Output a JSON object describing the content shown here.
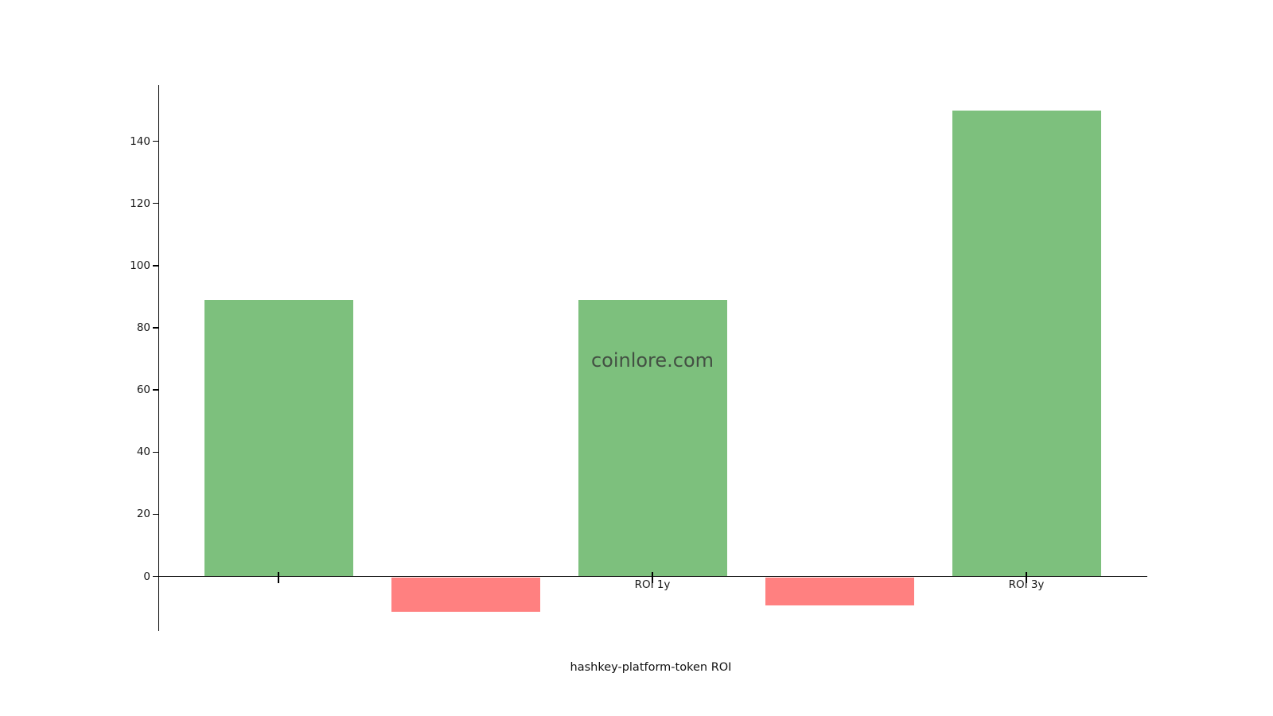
{
  "chart_data": {
    "type": "bar",
    "title": "hashkey-platform-token ROI",
    "watermark": "coinlore.com",
    "categories": [
      "",
      "",
      "ROI 1y",
      "",
      "ROI 3y"
    ],
    "values": [
      89,
      -11,
      89,
      -9,
      150
    ],
    "bar_colors": [
      "#7dc07d",
      "#ff8080",
      "#7dc07d",
      "#ff8080",
      "#7dc07d"
    ],
    "positive_color": "#7dc07d",
    "negative_color": "#ff8080",
    "yticks": [
      0,
      20,
      40,
      60,
      80,
      100,
      120,
      140
    ],
    "xtick_indices": [
      0,
      2,
      4
    ],
    "ylim": [
      -17.5,
      158.5
    ],
    "xlabel": "",
    "ylabel": "",
    "grid": false,
    "legend": "none",
    "background_color": "#ffffff",
    "axis_color": "#000000"
  }
}
